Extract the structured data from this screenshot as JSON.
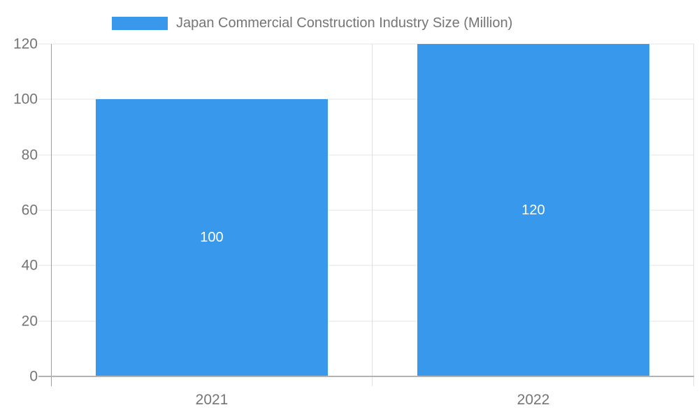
{
  "legend": {
    "position": "top"
  },
  "chart_data": {
    "type": "bar",
    "title": "Japan Commercial Construction Industry Size (Million)",
    "categories": [
      "2021",
      "2022"
    ],
    "values": [
      100,
      120
    ],
    "xlabel": "",
    "ylabel": "",
    "ylim": [
      0,
      120
    ],
    "yticks": [
      0,
      20,
      40,
      60,
      80,
      100,
      120
    ],
    "grid": true,
    "legend_position": "top",
    "bar_value_labels_inside": true,
    "colors": {
      "bar": "#3899ec",
      "bar_label_text": "#ffffff",
      "gridline": "#e6e6e6",
      "band_separator": "#e0e0e0",
      "axis_line": "#9e9e9e",
      "baseline": "#b3b3b3",
      "tick_text": "#757575",
      "title_text": "#757575",
      "background": "#ffffff"
    }
  }
}
